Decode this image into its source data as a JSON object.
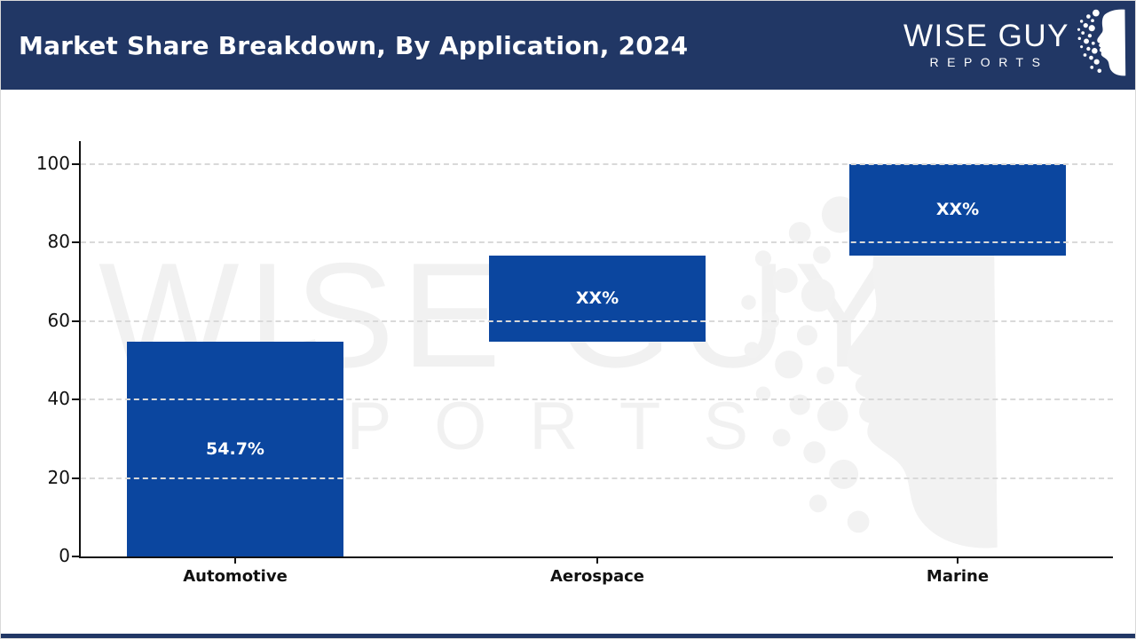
{
  "header": {
    "title": "Market Share Breakdown, By Application, 2024",
    "bg_color": "#213765",
    "logo": {
      "line1": "WISE GUY",
      "line2": "REPORTS",
      "icon": "dotted-face-profile-icon"
    }
  },
  "watermark": {
    "line1": "WISE GUY",
    "line2": "REPORTS",
    "icon": "dotted-face-profile-icon"
  },
  "chart_data": {
    "type": "bar",
    "variant": "waterfall-floating-bars",
    "title": "Market Share Breakdown, By Application, 2024",
    "categories": [
      "Automotive",
      "Aerospace",
      "Marine"
    ],
    "bars": [
      {
        "category": "Automotive",
        "start": 0,
        "end": 54.7,
        "label": "54.7%"
      },
      {
        "category": "Aerospace",
        "start": 54.7,
        "end": 76.8,
        "label": "XX%"
      },
      {
        "category": "Marine",
        "start": 76.8,
        "end": 100,
        "label": "XX%"
      }
    ],
    "bar_color": "#0b469f",
    "bar_label_color": "#ffffff",
    "xlabel": "",
    "ylabel": "",
    "ylim": [
      0,
      106
    ],
    "yticks": [
      0,
      20,
      40,
      60,
      80,
      100
    ],
    "grid": "horizontal dashed, drawn above bars",
    "gridline_color": "#d9d9d9",
    "axis_color": "#111111",
    "legend": "none"
  }
}
